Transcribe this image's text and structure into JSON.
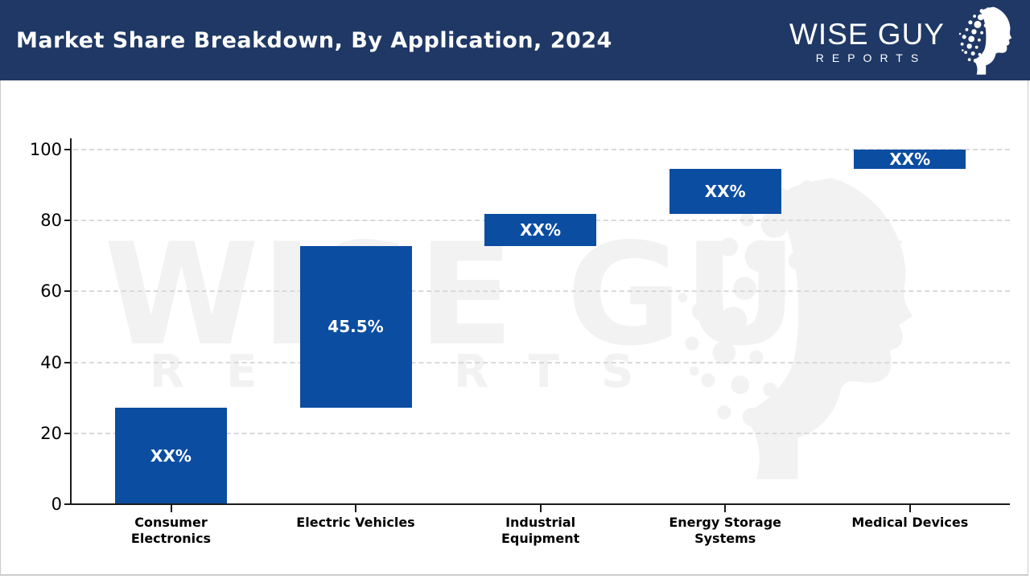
{
  "header": {
    "title": "Market Share Breakdown, By Application, 2024",
    "logo": {
      "wordmark": "WISE GUY",
      "subtitle": "REPORTS"
    }
  },
  "watermark": {
    "wordmark": "WISE GUY",
    "subtitle": "REPORTS"
  },
  "chart_data": {
    "type": "bar",
    "variant": "waterfall",
    "title": "Market Share Breakdown, By Application, 2024",
    "categories": [
      "Consumer Electronics",
      "Electric Vehicles",
      "Industrial Equipment",
      "Energy Storage Systems",
      "Medical Devices"
    ],
    "bar_labels": [
      "XX%",
      "45.5%",
      "XX%",
      "XX%",
      "XX%"
    ],
    "segments": [
      {
        "category": "Consumer Electronics",
        "label": "XX%",
        "start": 0,
        "end": 27.3
      },
      {
        "category": "Electric Vehicles",
        "label": "45.5%",
        "start": 27.3,
        "end": 72.8
      },
      {
        "category": "Industrial Equipment",
        "label": "XX%",
        "start": 72.8,
        "end": 81.8
      },
      {
        "category": "Energy Storage Systems",
        "label": "XX%",
        "start": 81.8,
        "end": 94.5
      },
      {
        "category": "Medical Devices",
        "label": "XX%",
        "start": 94.5,
        "end": 100
      }
    ],
    "xlabel": "",
    "ylabel": "",
    "ylim": [
      0,
      100
    ],
    "yticks": [
      0,
      20,
      40,
      60,
      80,
      100
    ],
    "grid": "horizontal-dashed",
    "legend": "none",
    "colors": {
      "bar": "#0b4da1",
      "bar_label": "#ffffff",
      "axis": "#1a1a1a",
      "gridline": "#d9d9d9",
      "header_background": "#1f3865",
      "watermark": "#f2f2f2"
    }
  }
}
